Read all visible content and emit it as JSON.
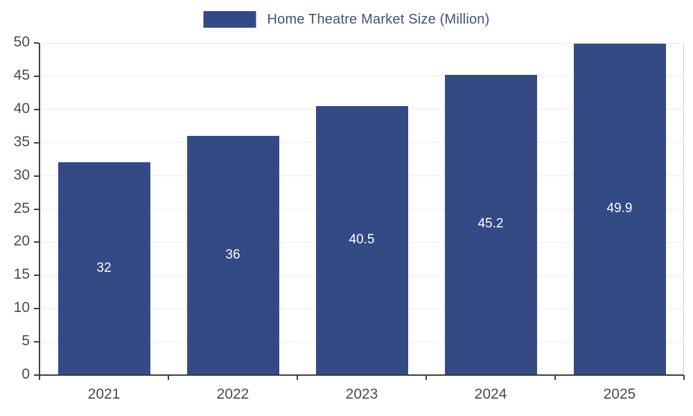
{
  "chart_data": {
    "type": "bar",
    "title": "Home Theatre Market Size (Million)",
    "categories": [
      "2021",
      "2022",
      "2023",
      "2024",
      "2025"
    ],
    "values": [
      32,
      36,
      40.5,
      45.2,
      49.9
    ],
    "value_labels": [
      "32",
      "36",
      "40.5",
      "45.2",
      "49.9"
    ],
    "xlabel": "",
    "ylabel": "",
    "ylim": [
      0,
      50
    ],
    "ytick_step": 5,
    "ytick_labels": [
      "0",
      "5",
      "10",
      "15",
      "20",
      "25",
      "30",
      "35",
      "40",
      "45",
      "50"
    ],
    "legend_position": "top-center",
    "grid": true,
    "colors": {
      "bar": "#334a85",
      "title": "#41507f",
      "axis": "#3d3d3d",
      "tick_label": "#4a4a4a",
      "grid_line": "#ededed",
      "plot_border": "#cccccc",
      "value_label": "#ffffff",
      "background": "#ffffff"
    }
  }
}
